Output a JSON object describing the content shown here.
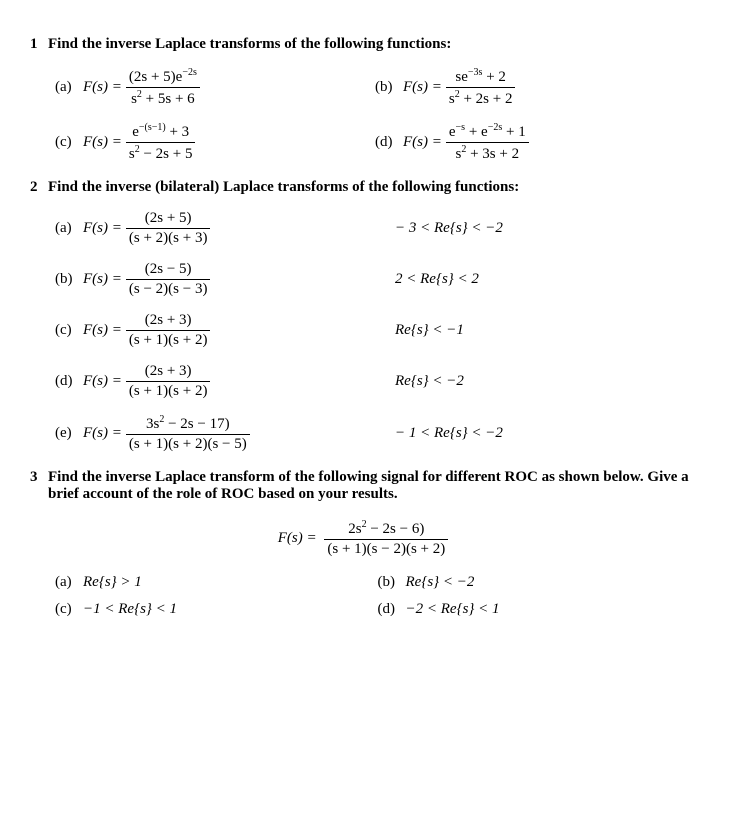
{
  "q1": {
    "number": "1",
    "title": "Find the inverse Laplace transforms of the following functions:",
    "parts": {
      "a": {
        "label": "(a)",
        "lhs": "F(s) =",
        "num": "(2s + 5)e<sup>−2s</sup>",
        "den": "s<sup>2</sup> + 5s + 6"
      },
      "b": {
        "label": "(b)",
        "lhs": "F(s) =",
        "num": "se<sup>−3s</sup> + 2",
        "den": "s<sup>2</sup> + 2s + 2"
      },
      "c": {
        "label": "(c)",
        "lhs": "F(s) =",
        "num": "e<sup>−(s−1)</sup> + 3",
        "den": "s<sup>2</sup> − 2s + 5"
      },
      "d": {
        "label": "(d)",
        "lhs": "F(s) =",
        "num": "e<sup>−s</sup> + e<sup>−2s</sup> + 1",
        "den": "s<sup>2</sup> + 3s + 2"
      }
    }
  },
  "q2": {
    "number": "2",
    "title": "Find the inverse (bilateral) Laplace transforms of the following functions:",
    "parts": {
      "a": {
        "label": "(a)",
        "lhs": "F(s) =",
        "num": "(2s + 5)",
        "den": "(s + 2)(s + 3)",
        "roc": "− 3 < Re{s} <  −2"
      },
      "b": {
        "label": "(b)",
        "lhs": "F(s) =",
        "num": "(2s − 5)",
        "den": "(s − 2)(s − 3)",
        "roc": "2 < Re{s} <  2"
      },
      "c": {
        "label": "(c)",
        "lhs": "F(s) =",
        "num": "(2s + 3)",
        "den": "(s + 1)(s + 2)",
        "roc": "Re{s} <  −1"
      },
      "d": {
        "label": "(d)",
        "lhs": "F(s) =",
        "num": "(2s + 3)",
        "den": "(s + 1)(s + 2)",
        "roc": "Re{s} <  −2"
      },
      "e": {
        "label": "(e)",
        "lhs": "F(s) =",
        "num": "3s<sup>2</sup> − 2s − 17)",
        "den": "(s + 1)(s + 2)(s − 5)",
        "roc": "− 1 <  Re{s} <  −2"
      }
    }
  },
  "q3": {
    "number": "3",
    "title": "Find the inverse Laplace transform of the following signal for different ROC as shown below. Give a brief account of the role of ROC based on your results.",
    "eq": {
      "lhs": "F(s) =",
      "num": "2s<sup>2</sup> − 2s − 6)",
      "den": "(s + 1)(s − 2)(s + 2)"
    },
    "parts": {
      "a": {
        "label": "(a)",
        "text": "Re{s} > 1"
      },
      "b": {
        "label": "(b)",
        "text": "Re{s} < −2"
      },
      "c": {
        "label": "(c)",
        "text": "−1 < Re{s} < 1"
      },
      "d": {
        "label": "(d)",
        "text": "−2 < Re{s} < 1"
      }
    }
  }
}
